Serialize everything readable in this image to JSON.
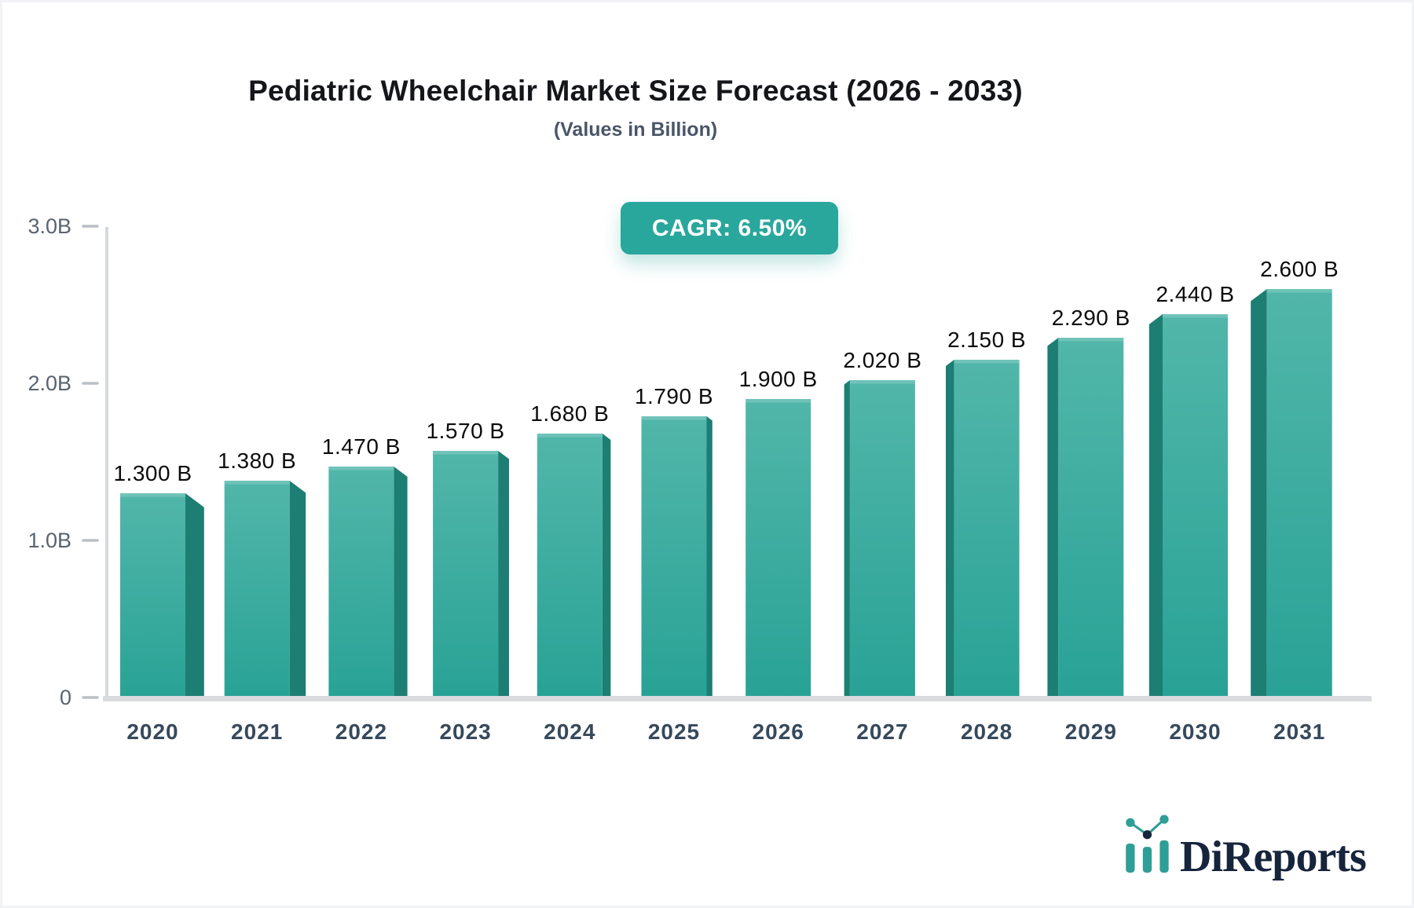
{
  "header": {
    "title": "Pediatric Wheelchair Market Size Forecast (2026 - 2033)",
    "subtitle": "(Values in Billion)"
  },
  "badge": {
    "label": "CAGR: 6.50%",
    "bg_color": "#2aa79c",
    "text_color": "#ffffff"
  },
  "logo": {
    "text": "DiReports",
    "icon": "mini-bar-chart-icon",
    "text_color": "#16243c",
    "accent_color": "#2f9e96"
  },
  "chart_data": {
    "type": "bar",
    "title": "Pediatric Wheelchair Market Size Forecast (2026 - 2033)",
    "subtitle": "(Values in Billion)",
    "annotation": "CAGR: 6.50%",
    "categories": [
      "2020",
      "2021",
      "2022",
      "2023",
      "2024",
      "2025",
      "2026",
      "2027",
      "2028",
      "2029",
      "2030",
      "2031"
    ],
    "values": [
      1.3,
      1.38,
      1.47,
      1.57,
      1.68,
      1.79,
      1.9,
      2.02,
      2.15,
      2.29,
      2.44,
      2.6
    ],
    "value_labels": [
      "1.300 B",
      "1.380 B",
      "1.470 B",
      "1.570 B",
      "1.680 B",
      "1.790 B",
      "1.900 B",
      "2.020 B",
      "2.150 B",
      "2.290 B",
      "2.440 B",
      "2.600 B"
    ],
    "unit": "B",
    "ylim": [
      0,
      3
    ],
    "y_ticks": [
      {
        "value": 0,
        "label": "0"
      },
      {
        "value": 1,
        "label": "1.0B"
      },
      {
        "value": 2,
        "label": "2.0B"
      },
      {
        "value": 3,
        "label": "3.0B"
      }
    ],
    "grid": false,
    "legend": false,
    "style": "3d-perspective-bars",
    "colors": {
      "bar_gradient_top": "#52b6aa",
      "bar_gradient_bottom": "#28a295",
      "bar_top_highlight": "#84ccc1",
      "bar_side": "#1d7e73",
      "axis_line": "#d6d8dc",
      "baseline": "#d9dbde",
      "tick_dash": "#b9bfc7",
      "y_tick_label": "#59636f",
      "x_tick_label": "#36495c",
      "value_label": "#0b0c0d"
    }
  }
}
